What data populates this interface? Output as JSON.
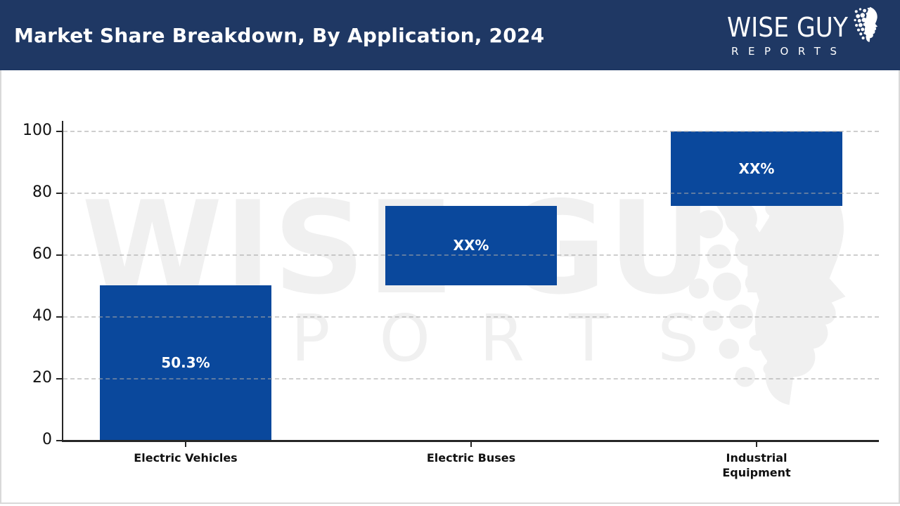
{
  "header": {
    "title": "Market Share Breakdown, By Application, 2024",
    "logo": {
      "line1": "WISE GUY",
      "line2": "REPORTS"
    }
  },
  "watermark": {
    "line1": "WISE GUY",
    "line2": "REPORTS"
  },
  "colors": {
    "header_bg": "#1f3864",
    "bar_blue": "#0a489c",
    "watermark": "#f0f0f0",
    "axis": "#262626",
    "grid": "#a5a5a5",
    "text_dark": "#111111",
    "white": "#ffffff"
  },
  "chart_data": {
    "type": "bar",
    "subtype": "floating-waterfall",
    "title": "Market Share Breakdown, By Application, 2024",
    "categories": [
      "Electric Vehicles",
      "Electric Buses",
      "Industrial Equipment"
    ],
    "segments": [
      {
        "category": "Electric Vehicles",
        "from": 0,
        "to": 50.3,
        "label": "50.3%"
      },
      {
        "category": "Electric Buses",
        "from": 50.3,
        "to": 76,
        "label": "XX%"
      },
      {
        "category": "Industrial Equipment",
        "from": 76,
        "to": 100,
        "label": "XX%"
      }
    ],
    "ylim": [
      0,
      100
    ],
    "yticks": [
      0,
      20,
      40,
      60,
      80,
      100
    ],
    "xlabel": "",
    "ylabel": "",
    "grid": "horizontal-dashed",
    "legend": "none",
    "bar_color": "#0a489c",
    "bar_label_color": "#ffffff"
  }
}
